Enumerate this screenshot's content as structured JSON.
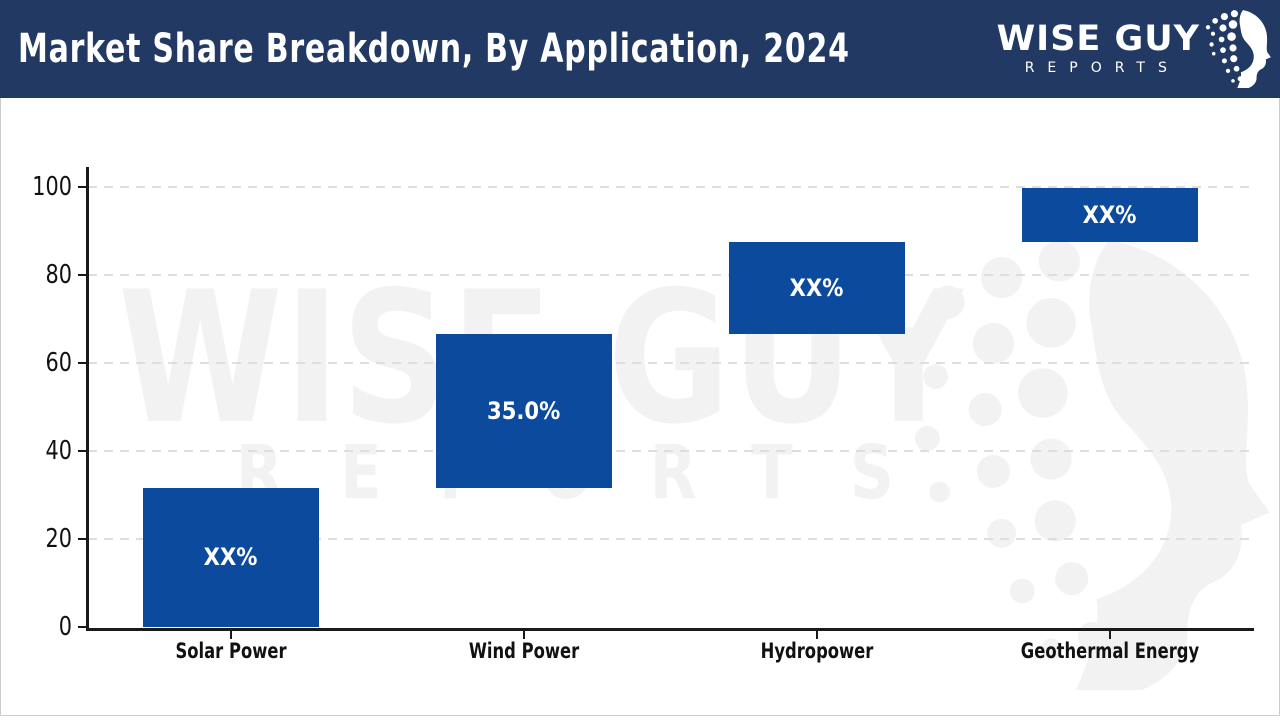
{
  "header": {
    "title": "Market Share Breakdown, By Application, 2024",
    "logo": {
      "line1": "WISE GUY",
      "line2": "REPORTS",
      "icon": "dotted-head-profile-icon"
    }
  },
  "watermark": {
    "line1": "WISE GUY",
    "line2": "REPORTS",
    "icon": "dotted-head-profile-icon"
  },
  "colors": {
    "header_bg": "#223a63",
    "bar": "#0b4a9c",
    "bar_label_text": "#ffffff",
    "axis": "#1a1a1a",
    "grid": "#dedede",
    "watermark": "#f2f2f2",
    "frame_border": "#cccccc",
    "tick_text": "#111111"
  },
  "chart_data": {
    "type": "bar",
    "subtype": "floating-waterfall",
    "title": "Market Share Breakdown, By Application, 2024",
    "xlabel": "",
    "ylabel": "",
    "categories": [
      "Solar Power",
      "Wind Power",
      "Hydropower",
      "Geothermal Energy"
    ],
    "segments": [
      {
        "category": "Solar Power",
        "start": 0,
        "value": 31.6,
        "label": "XX%"
      },
      {
        "category": "Wind Power",
        "start": 31.6,
        "value": 35.0,
        "label": "35.0%"
      },
      {
        "category": "Hydropower",
        "start": 66.6,
        "value": 20.8,
        "label": "XX%"
      },
      {
        "category": "Geothermal Energy",
        "start": 87.4,
        "value": 12.4,
        "label": "XX%"
      }
    ],
    "yticks": [
      0,
      20,
      40,
      60,
      80,
      100
    ],
    "ylim": [
      0,
      105
    ],
    "grid": "horizontal-dashed",
    "legend": "none"
  }
}
